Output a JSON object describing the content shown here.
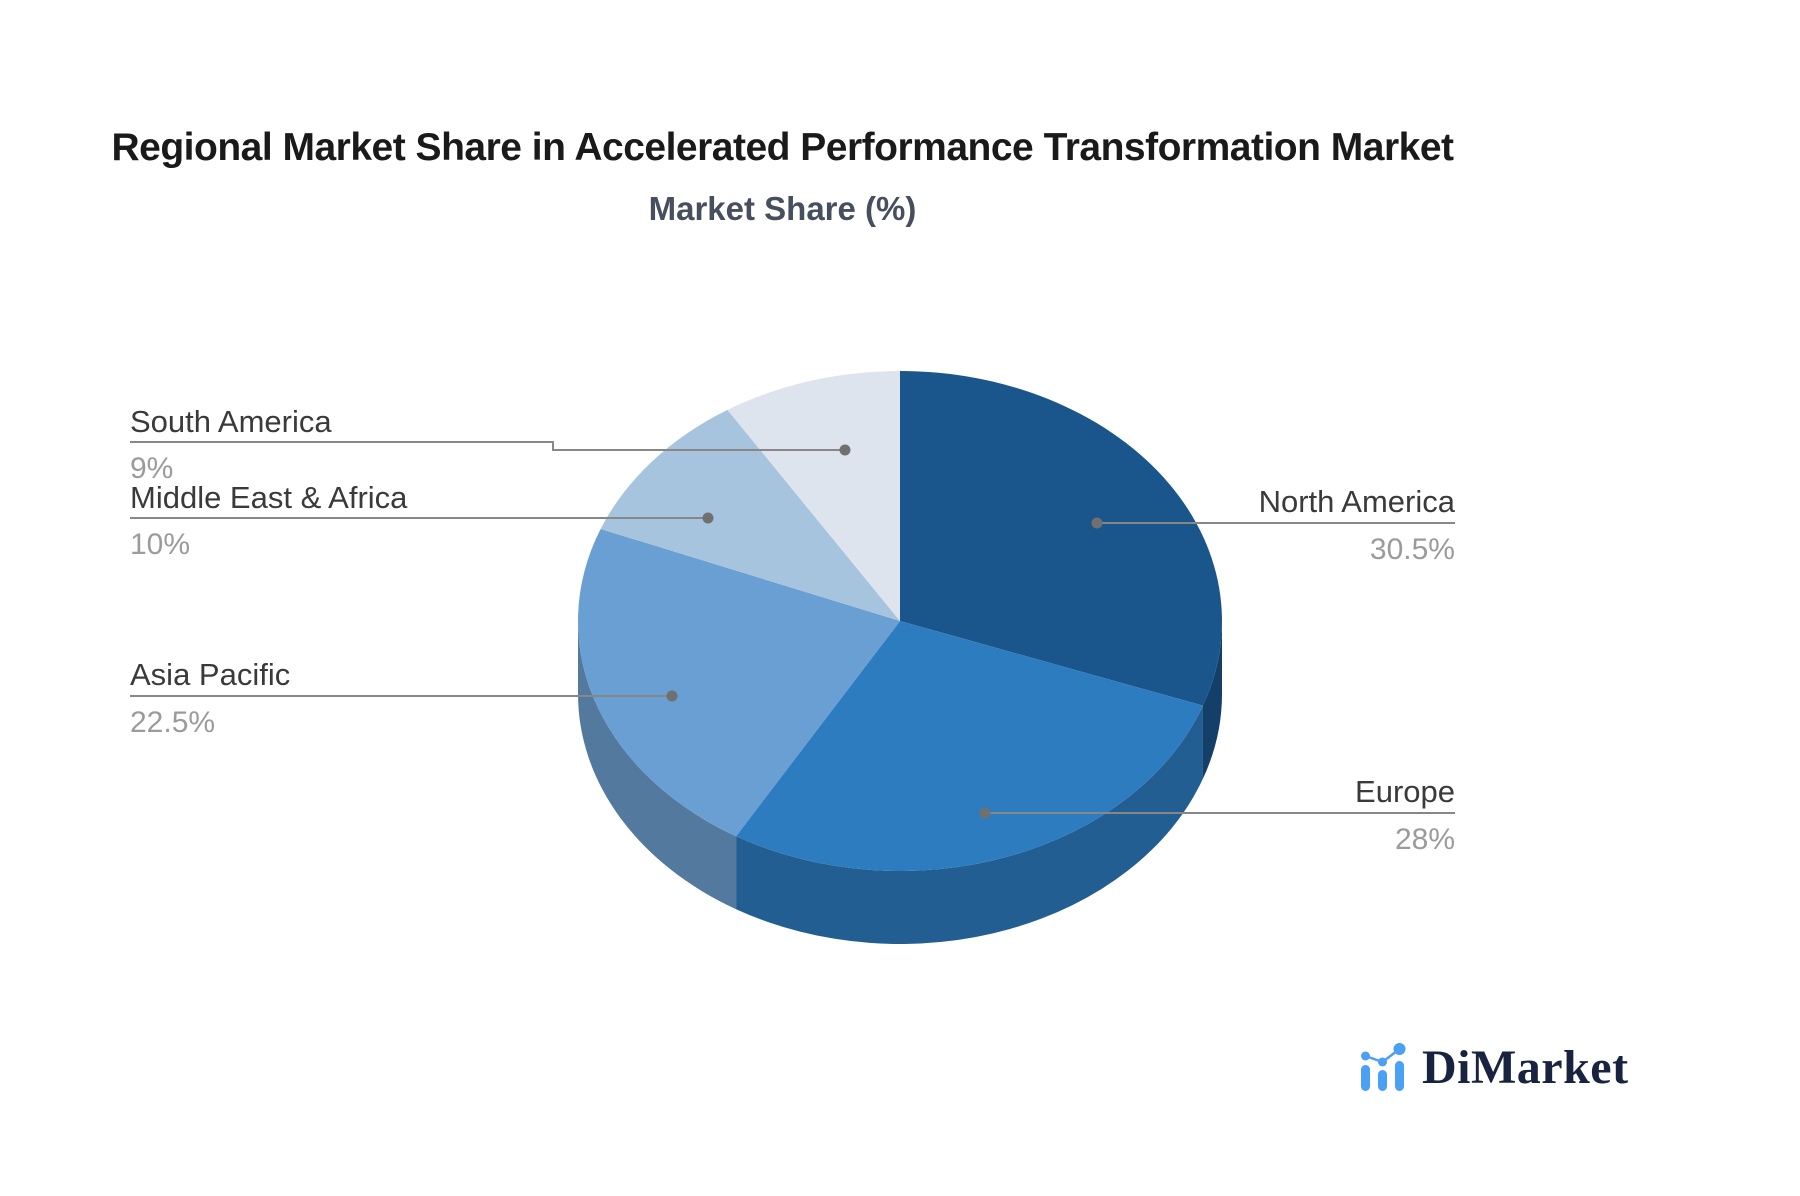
{
  "title": "Regional Market Share in Accelerated Performance Transformation Market",
  "subtitle": "Market Share (%)",
  "logo": {
    "text": "DiMarket",
    "icon": "bar-line-chart-icon",
    "icon_color": "#4aa0f2",
    "text_color": "#18233f"
  },
  "leader": {
    "line_color": "#878787",
    "dot_color": "#707070"
  },
  "chart_data": {
    "type": "pie",
    "title": "Regional Market Share in Accelerated Performance Transformation Market",
    "subtitle": "Market Share (%)",
    "style": "3d-pie",
    "start_angle_deg": 0,
    "direction": "clockwise",
    "legend_position": "callout-labels",
    "slices": [
      {
        "label": "North America",
        "value": 30.5,
        "display": "30.5%",
        "color": "#1a568c",
        "rim_color": "#133f68",
        "label_side": "right"
      },
      {
        "label": "Europe",
        "value": 28,
        "display": "28%",
        "color": "#2e7cc0",
        "rim_color": "#235e92",
        "label_side": "right"
      },
      {
        "label": "Asia Pacific",
        "value": 22.5,
        "display": "22.5%",
        "color": "#699fd2",
        "rim_color": "#54799f",
        "label_side": "left"
      },
      {
        "label": "Middle East & Africa",
        "value": 10,
        "display": "10%",
        "color": "#a7c4de",
        "rim_color": "#8aa8c2",
        "label_side": "left"
      },
      {
        "label": "South America",
        "value": 9,
        "display": "9%",
        "color": "#dee4ed",
        "rim_color": "#bcc6d4",
        "label_side": "left"
      }
    ]
  }
}
